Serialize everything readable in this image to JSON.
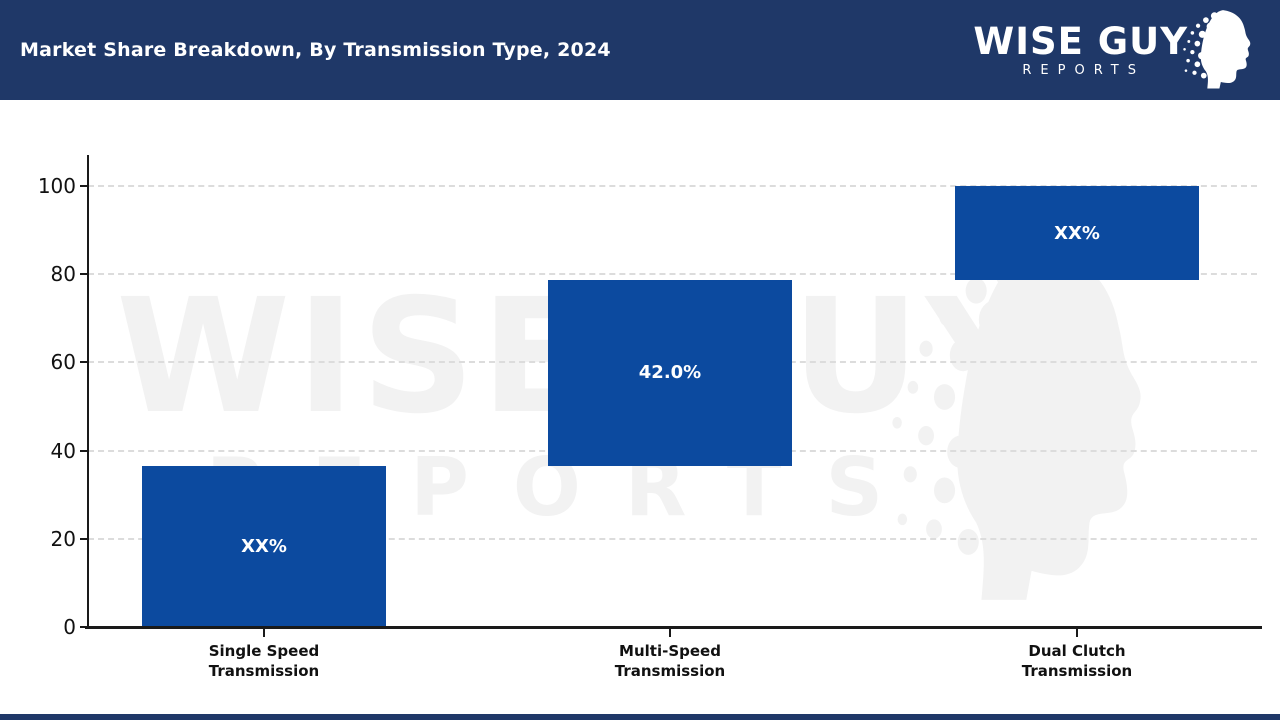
{
  "header": {
    "title": "Market Share Breakdown, By Transmission Type, 2024",
    "logo": {
      "line1": "WISE GUY",
      "line2": "REPORTS",
      "icon": "dotted-head-profile-icon"
    }
  },
  "watermark": {
    "line1": "WISE GUY",
    "line2": "REPORTS"
  },
  "footer": {},
  "colors": {
    "header_bg": "#1f3868",
    "footer_bg": "#1f3868",
    "bar_fill": "#0c4a9f",
    "bar_label_text": "#ffffff",
    "gridline": "#dcdcdc",
    "axis": "#1a1a1a",
    "watermark": "#f2f2f2"
  },
  "chart_data": {
    "type": "bar",
    "subtype": "waterfall-floating-bars",
    "title": "Market Share Breakdown, By Transmission Type, 2024",
    "categories": [
      "Single Speed\nTransmission",
      "Multi-Speed\nTransmission",
      "Dual Clutch\nTransmission"
    ],
    "segments": [
      {
        "category": "Single Speed Transmission",
        "start": 0,
        "end": 36.6,
        "label": "XX%"
      },
      {
        "category": "Multi-Speed Transmission",
        "start": 36.6,
        "end": 78.6,
        "label": "42.0%"
      },
      {
        "category": "Dual Clutch Transmission",
        "start": 78.6,
        "end": 100,
        "label": "XX%"
      }
    ],
    "ylabel": "",
    "xlabel": "",
    "yticks": [
      0,
      20,
      40,
      60,
      80,
      100
    ],
    "ylim": [
      0,
      107
    ],
    "grid": "horizontal-dashed",
    "legend": "none"
  }
}
